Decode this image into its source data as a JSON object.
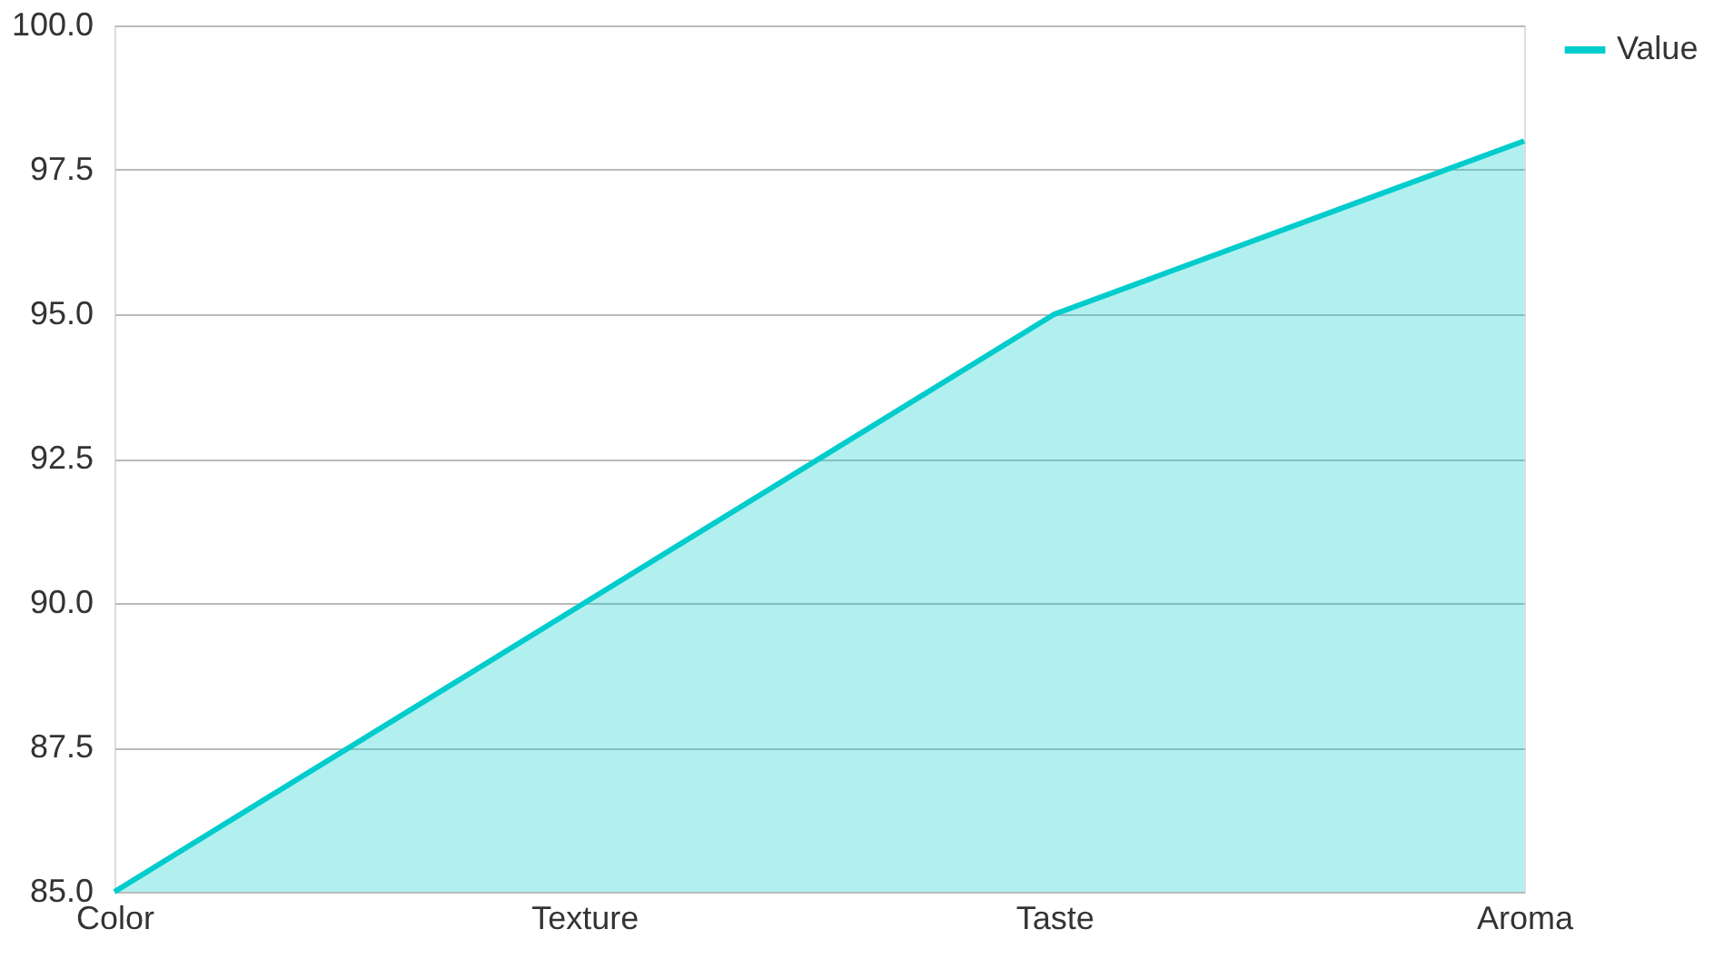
{
  "chart_data": {
    "type": "area",
    "categories": [
      "Color",
      "Texture",
      "Taste",
      "Aroma"
    ],
    "series": [
      {
        "name": "Value",
        "color": "#00cccc",
        "values": [
          85,
          90,
          95,
          98
        ]
      }
    ],
    "ylim": [
      85,
      100
    ],
    "yticks": [
      {
        "value": 85,
        "label": "85.0"
      },
      87.5,
      {
        "value": 90,
        "label": "90.0"
      },
      92.5,
      {
        "value": 95,
        "label": "95.0"
      },
      97.5,
      {
        "value": 100,
        "label": "100.0"
      }
    ],
    "grid": "y",
    "legend": "top right"
  }
}
